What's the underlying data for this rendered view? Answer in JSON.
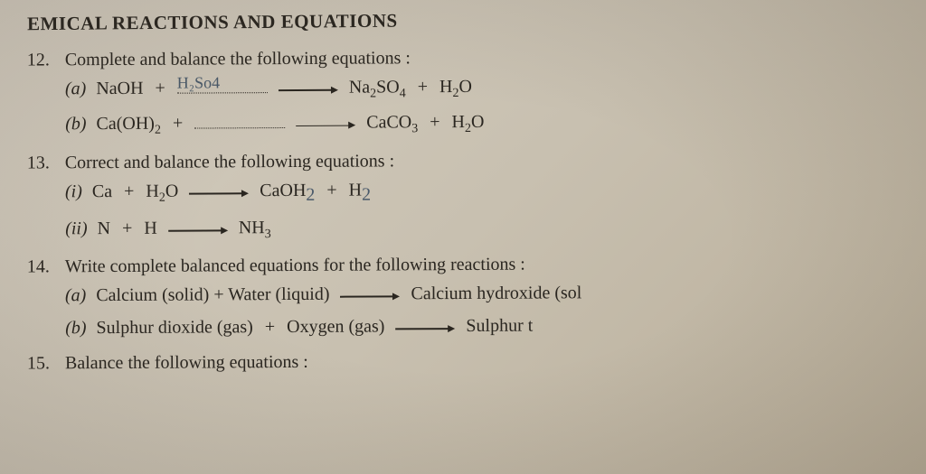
{
  "header": "EMICAL REACTIONS AND EQUATIONS",
  "q12": {
    "num": "12.",
    "text": "Complete and balance the following equations :",
    "a": {
      "label": "(a)",
      "left1": "NaOH",
      "plus": "+",
      "handwritten": "H₂So4",
      "right1": "Na",
      "right1sub": "2",
      "right2": "SO",
      "right2sub": "4",
      "right3": "H",
      "right3sub": "2",
      "right4": "O"
    },
    "b": {
      "label": "(b)",
      "left1": "Ca(OH)",
      "left1sub": "2",
      "plus": "+",
      "right1": "CaCO",
      "right1sub": "3",
      "right2": "H",
      "right2sub": "2",
      "right3": "O"
    }
  },
  "q13": {
    "num": "13.",
    "text": "Correct and balance the following equations :",
    "i": {
      "label": "(i)",
      "left1": "Ca",
      "plus": "+",
      "left2": "H",
      "left2sub": "2",
      "left3": "O",
      "right1": "CaOH",
      "hand1": "2",
      "right2": "H",
      "hand2": "2"
    },
    "ii": {
      "label": "(ii)",
      "left1": "N",
      "plus": "+",
      "left2": "H",
      "right1": "NH",
      "right1sub": "3"
    }
  },
  "q14": {
    "num": "14.",
    "text": "Write complete balanced equations for the following reactions :",
    "a": {
      "label": "(a)",
      "text1": "Calcium (solid) + Water (liquid)",
      "text2": "Calcium hydroxide (sol"
    },
    "b": {
      "label": "(b)",
      "text1": "Sulphur dioxide (gas)",
      "plus": "+",
      "text2": "Oxygen (gas)",
      "text3": "Sulphur t"
    }
  },
  "q15": {
    "num": "15.",
    "text": "Balance the following equations :"
  }
}
